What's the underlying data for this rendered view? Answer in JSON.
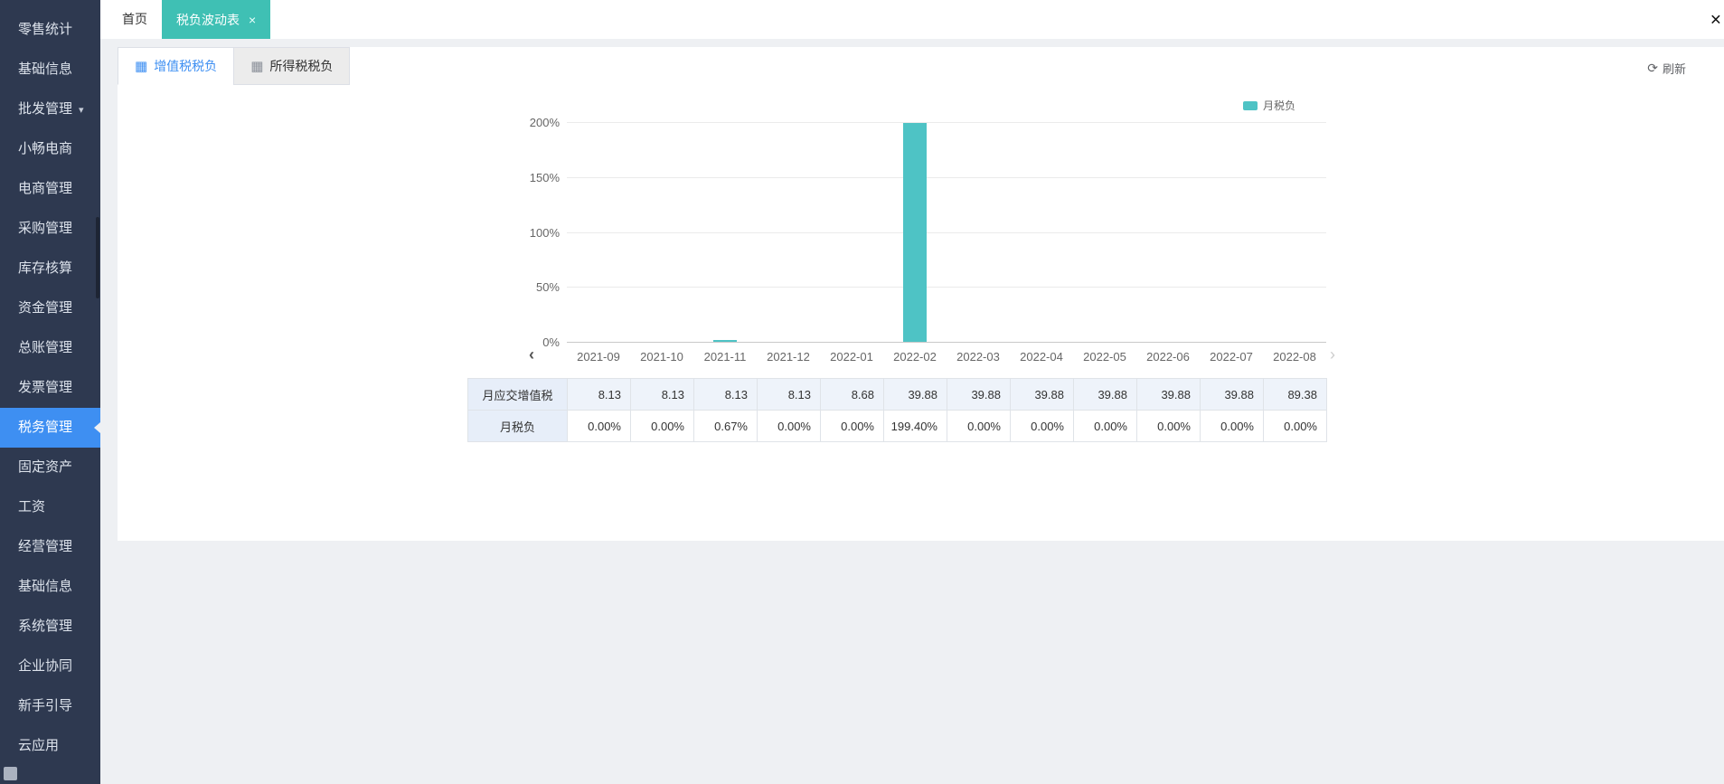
{
  "window": {
    "close_icon": "×"
  },
  "sidebar": {
    "caret_icon": "▾",
    "items": [
      {
        "label": "零售统计"
      },
      {
        "label": "基础信息"
      },
      {
        "label": "批发管理",
        "caret": true
      },
      {
        "label": "小畅电商"
      },
      {
        "label": "电商管理"
      },
      {
        "label": "采购管理"
      },
      {
        "label": "库存核算"
      },
      {
        "label": "资金管理"
      },
      {
        "label": "总账管理"
      },
      {
        "label": "发票管理"
      },
      {
        "label": "税务管理",
        "active": true
      },
      {
        "label": "固定资产"
      },
      {
        "label": "工资"
      },
      {
        "label": "经营管理"
      },
      {
        "label": "基础信息"
      },
      {
        "label": "系统管理"
      },
      {
        "label": "企业协同"
      },
      {
        "label": "新手引导"
      },
      {
        "label": "云应用"
      }
    ]
  },
  "tabbar": {
    "home_tab": "首页",
    "active_tab": "税负波动表",
    "close_icon": "×"
  },
  "panel": {
    "tabs": [
      {
        "label": "增值税税负",
        "icon": "▦",
        "active": true
      },
      {
        "label": "所得税税负",
        "icon": "▦",
        "active": false
      }
    ],
    "refresh_label": "刷新",
    "refresh_icon": "⟳",
    "prev_arrow": "‹",
    "next_arrow": "›"
  },
  "chart_data": {
    "type": "bar",
    "title": "",
    "categories": [
      "2021-09",
      "2021-10",
      "2021-11",
      "2021-12",
      "2022-01",
      "2022-02",
      "2022-03",
      "2022-04",
      "2022-05",
      "2022-06",
      "2022-07",
      "2022-08"
    ],
    "series": [
      {
        "name": "月税负",
        "values": [
          0.0,
          0.0,
          0.67,
          0.0,
          0.0,
          199.4,
          0.0,
          0.0,
          0.0,
          0.0,
          0.0,
          0.0
        ]
      }
    ],
    "y_ticks": [
      {
        "v": 0,
        "label": "0%"
      },
      {
        "v": 50,
        "label": "50%"
      },
      {
        "v": 100,
        "label": "100%"
      },
      {
        "v": 150,
        "label": "150%"
      },
      {
        "v": 200,
        "label": "200%"
      }
    ],
    "ylim": [
      0,
      200
    ],
    "grid": true,
    "legend_position": "top-right",
    "bar_color": "#4ec3c5"
  },
  "table": {
    "rows": [
      {
        "label": "月应交增值税",
        "values": [
          "8.13",
          "8.13",
          "8.13",
          "8.13",
          "8.68",
          "39.88",
          "39.88",
          "39.88",
          "39.88",
          "39.88",
          "39.88",
          "89.38"
        ]
      },
      {
        "label": "月税负",
        "values": [
          "0.00%",
          "0.00%",
          "0.67%",
          "0.00%",
          "0.00%",
          "199.40%",
          "0.00%",
          "0.00%",
          "0.00%",
          "0.00%",
          "0.00%",
          "0.00%"
        ]
      }
    ]
  },
  "colors": {
    "sidebar_bg": "#2e3950",
    "sidebar_active": "#3e8ff2",
    "doc_tab_active": "#3fc0b4",
    "bar": "#4ec3c5",
    "accent_blue": "#3e8ff2"
  }
}
